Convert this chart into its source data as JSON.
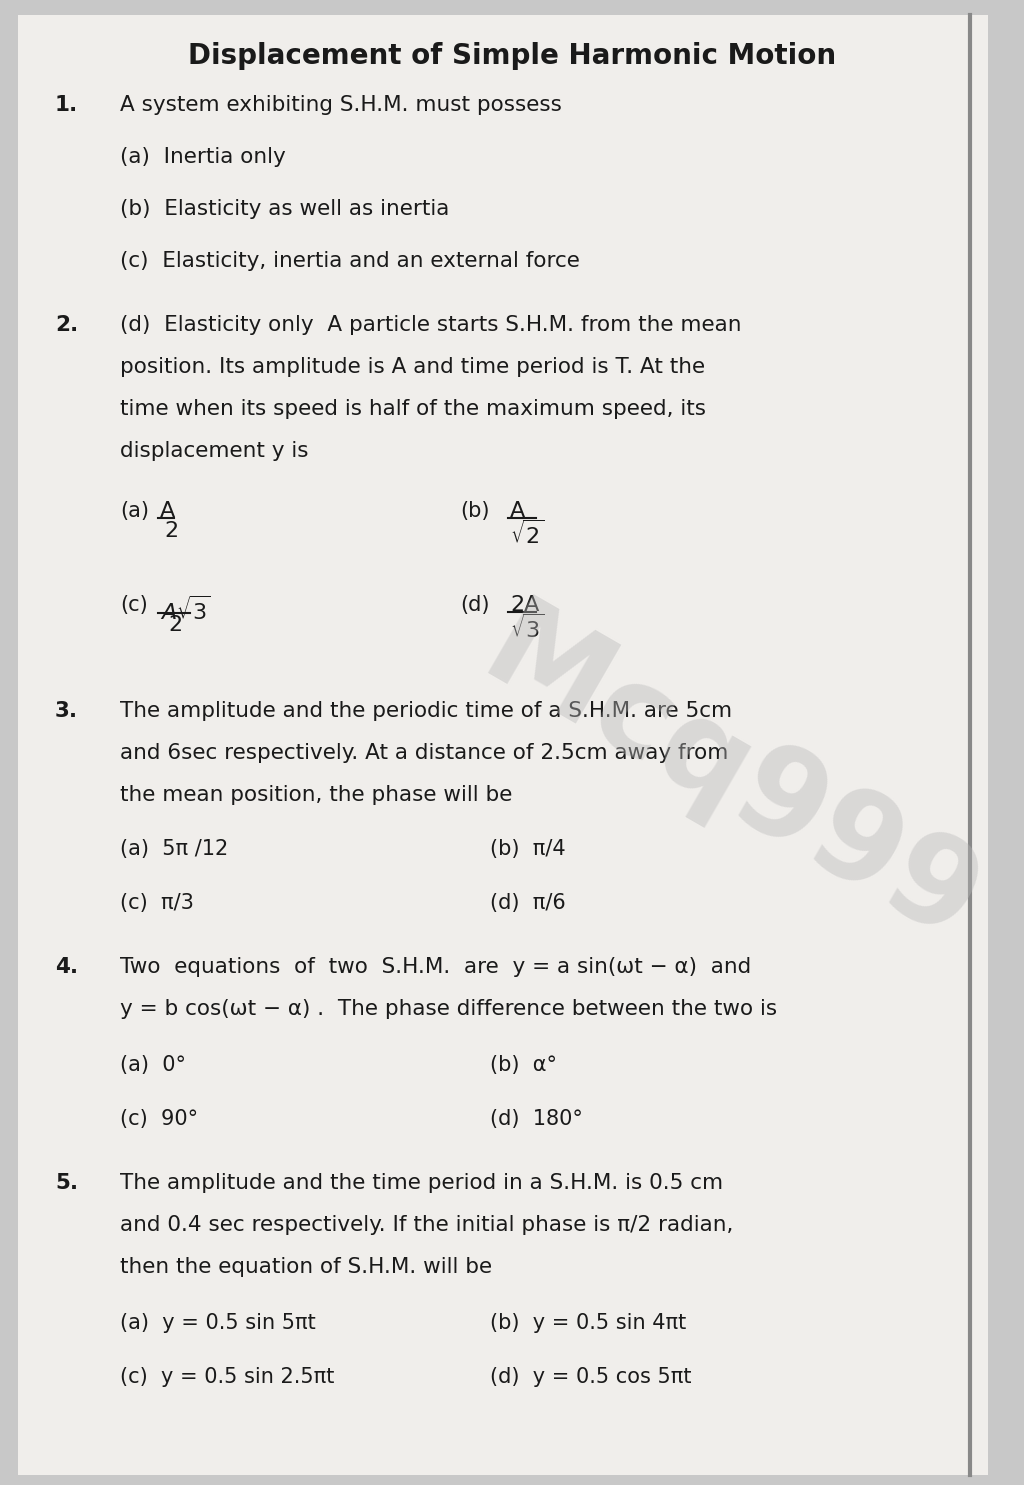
{
  "title": "Displacement of Simple Harmonic Motion",
  "bg_color": "#c8c8c8",
  "page_color": "#f0eeeb",
  "text_color": "#1a1a1a",
  "watermark_text": "Mcq999",
  "watermark_color": "#b8b8b8",
  "border_color": "#888888",
  "q1_num": "1.",
  "q1_text": "A system exhibiting S.H.M. must possess",
  "q1_opts": [
    "(a)  Inertia only",
    "(b)  Elasticity as well as inertia",
    "(c)  Elasticity, inertia and an external force"
  ],
  "q2_num": "2.",
  "q2_line1": "(d)  Elasticity only  A particle starts S.H.M. from the mean",
  "q2_line2": "position. Its amplitude is A and time period is T. At the",
  "q2_line3": "time when its speed is half of the maximum speed, its",
  "q2_line4": "displacement y is",
  "q3_num": "3.",
  "q3_line1": "The amplitude and the periodic time of a S.H.M. are 5cm",
  "q3_line2": "and 6sec respectively. At a distance of 2.5cm away from",
  "q3_line3": "the mean position, the phase will be",
  "q3_opts_a": "(a)  5π /12",
  "q3_opts_b": "(b)  π/4",
  "q3_opts_c": "(c)  π/3",
  "q3_opts_d": "(d)  π/6",
  "q4_num": "4.",
  "q4_line1": "Two  equations  of  two  S.H.M.  are  y = a sin(ωt − α)  and",
  "q4_line2": "y = b cos(ωt − α) .  The phase difference between the two is",
  "q4_opts_a": "(a)  0°",
  "q4_opts_b": "(b)  α°",
  "q4_opts_c": "(c)  90°",
  "q4_opts_d": "(d)  180°",
  "q5_num": "5.",
  "q5_line1": "The amplitude and the time period in a S.H.M. is 0.5 cm",
  "q5_line2": "and 0.4 sec respectively. If the initial phase is π/2 radian,",
  "q5_line3": "then the equation of S.H.M. will be",
  "q5_opts_a": "(a)  y = 0.5 sin 5πt",
  "q5_opts_b": "(b)  y = 0.5 sin 4πt",
  "q5_opts_c": "(c)  y = 0.5 sin 2.5πt",
  "q5_opts_d": "(d)  y = 0.5 cos 5πt"
}
